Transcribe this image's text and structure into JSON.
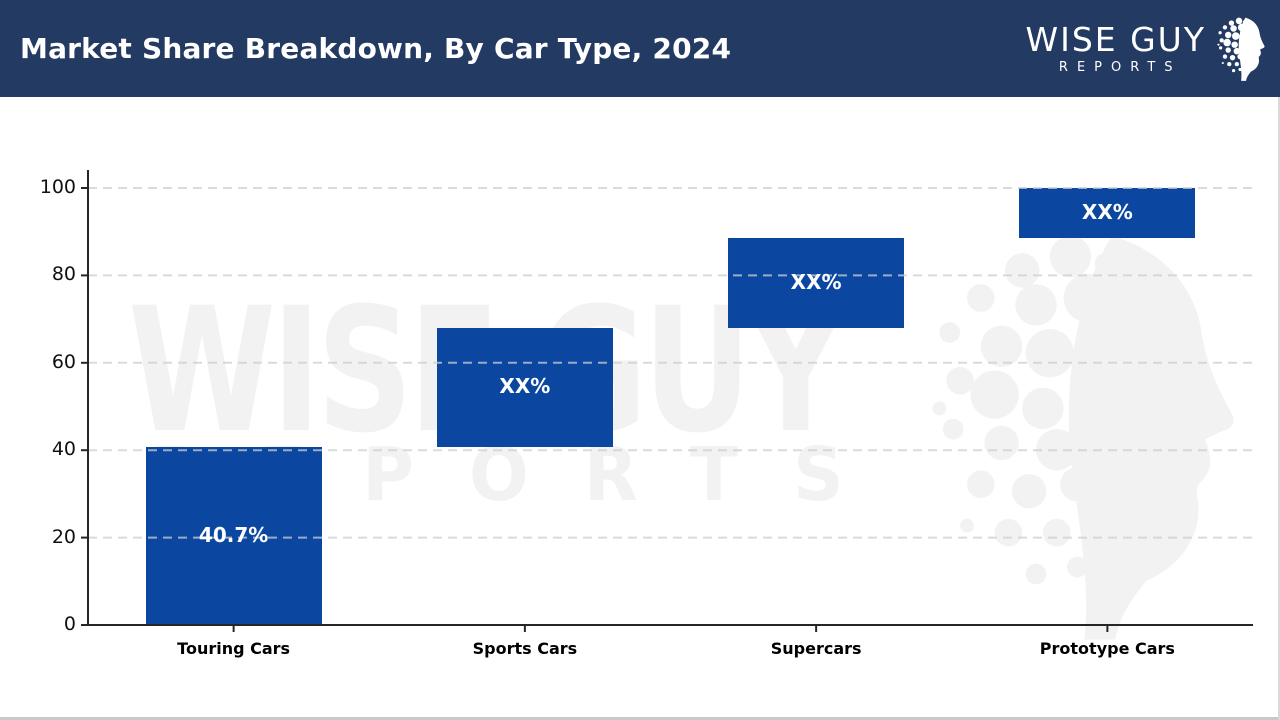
{
  "header": {
    "title": "Market Share Breakdown, By Car Type, 2024",
    "bg_color": "#233a63",
    "logo": {
      "line1": "WISE GUY",
      "line2": "REPORTS"
    }
  },
  "watermark": {
    "line1": "WISE GUY",
    "line2": "REPORTS",
    "color": "#f2f2f2"
  },
  "chart_data": {
    "type": "bar",
    "subtype": "waterfall",
    "title": "Market Share Breakdown, By Car Type, 2024",
    "categories": [
      "Touring Cars",
      "Sports Cars",
      "Supercars",
      "Prototype Cars"
    ],
    "segments": [
      {
        "category": "Touring Cars",
        "start": 0,
        "end": 40.7,
        "label": "40.7%"
      },
      {
        "category": "Sports Cars",
        "start": 40.7,
        "end": 68,
        "label": "XX%"
      },
      {
        "category": "Supercars",
        "start": 68,
        "end": 88.5,
        "label": "XX%"
      },
      {
        "category": "Prototype Cars",
        "start": 88.5,
        "end": 100,
        "label": "XX%"
      }
    ],
    "yticks": [
      0,
      20,
      40,
      60,
      80,
      100
    ],
    "ylim": [
      0,
      100
    ],
    "xlabel": "",
    "ylabel": "",
    "legend": "none",
    "grid": "horizontal dashed",
    "bar_color": "#0b47a1",
    "grid_color": "#cdcdcd",
    "axis_color": "#262626"
  }
}
